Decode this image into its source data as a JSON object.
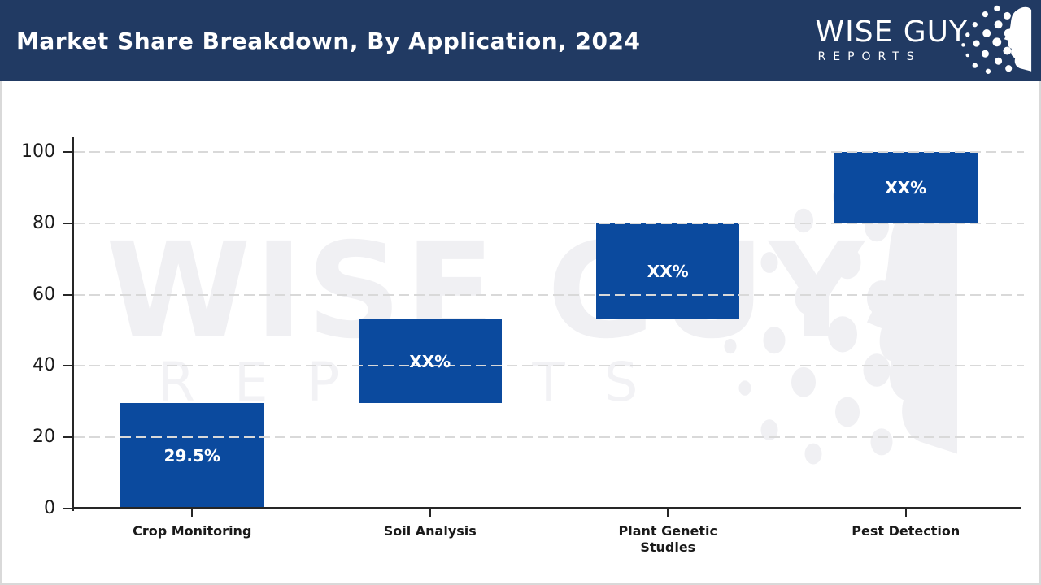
{
  "header": {
    "title": "Market Share Breakdown, By Application, 2024",
    "background_color": "#213a63",
    "logo": {
      "name": "WISE GUY",
      "tagline": "REPORTS"
    }
  },
  "watermark": {
    "name": "WISE GUY",
    "tagline": "REPORTS"
  },
  "chart_data": {
    "type": "bar",
    "subtype": "waterfall",
    "title": "Market Share Breakdown, By Application, 2024",
    "categories": [
      "Crop Monitoring",
      "Soil Analysis",
      "Plant Genetic Studies",
      "Pest Detection"
    ],
    "series": [
      {
        "name": "Market share (%)",
        "segments": [
          {
            "category": "Crop Monitoring",
            "start": 0,
            "end": 29.5,
            "label": "29.5%"
          },
          {
            "category": "Soil Analysis",
            "start": 29.5,
            "end": 53,
            "label": "XX%"
          },
          {
            "category": "Plant Genetic Studies",
            "start": 53,
            "end": 80,
            "label": "XX%"
          },
          {
            "category": "Pest Detection",
            "start": 80,
            "end": 100,
            "label": "XX%"
          }
        ]
      }
    ],
    "xlabel": "",
    "ylabel": "",
    "ylim": [
      0,
      100
    ],
    "yticks": [
      0,
      20,
      40,
      60,
      80,
      100
    ],
    "grid": {
      "horizontal": true,
      "style": "dashed",
      "color": "#d9d9d9"
    },
    "legend": "none",
    "bar_color": "#0b4a9e",
    "bar_label_color": "#ffffff",
    "axis_color": "#262626"
  }
}
